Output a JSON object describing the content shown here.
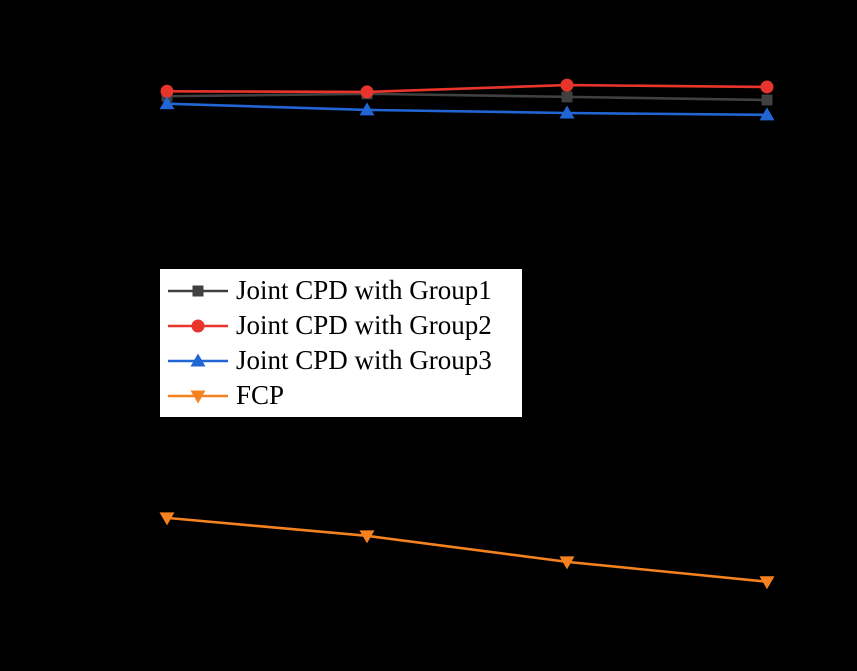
{
  "background_color": "#000000",
  "legend": {
    "position": "center-left",
    "background": "#ffffff",
    "border_color": "#000000"
  },
  "chart_data": {
    "type": "line",
    "x": [
      1,
      2,
      3,
      4
    ],
    "xlim": [
      0.7,
      4.3
    ],
    "ylim": [
      0,
      1
    ],
    "title": "",
    "xlabel": "",
    "ylabel": "",
    "grid": false,
    "series": [
      {
        "name": "Joint CPD with Group1",
        "color": "#404040",
        "marker": "square",
        "values": [
          0.877,
          0.881,
          0.876,
          0.871
        ]
      },
      {
        "name": "Joint CPD with Group2",
        "color": "#e8352c",
        "marker": "circle",
        "values": [
          0.885,
          0.884,
          0.895,
          0.892
        ]
      },
      {
        "name": "Joint CPD with Group3",
        "color": "#2166d4",
        "marker": "triangle-up",
        "values": [
          0.865,
          0.855,
          0.85,
          0.847
        ]
      },
      {
        "name": "FCP",
        "color": "#f5821f",
        "marker": "triangle-down",
        "values": [
          0.197,
          0.168,
          0.126,
          0.094
        ]
      }
    ]
  }
}
